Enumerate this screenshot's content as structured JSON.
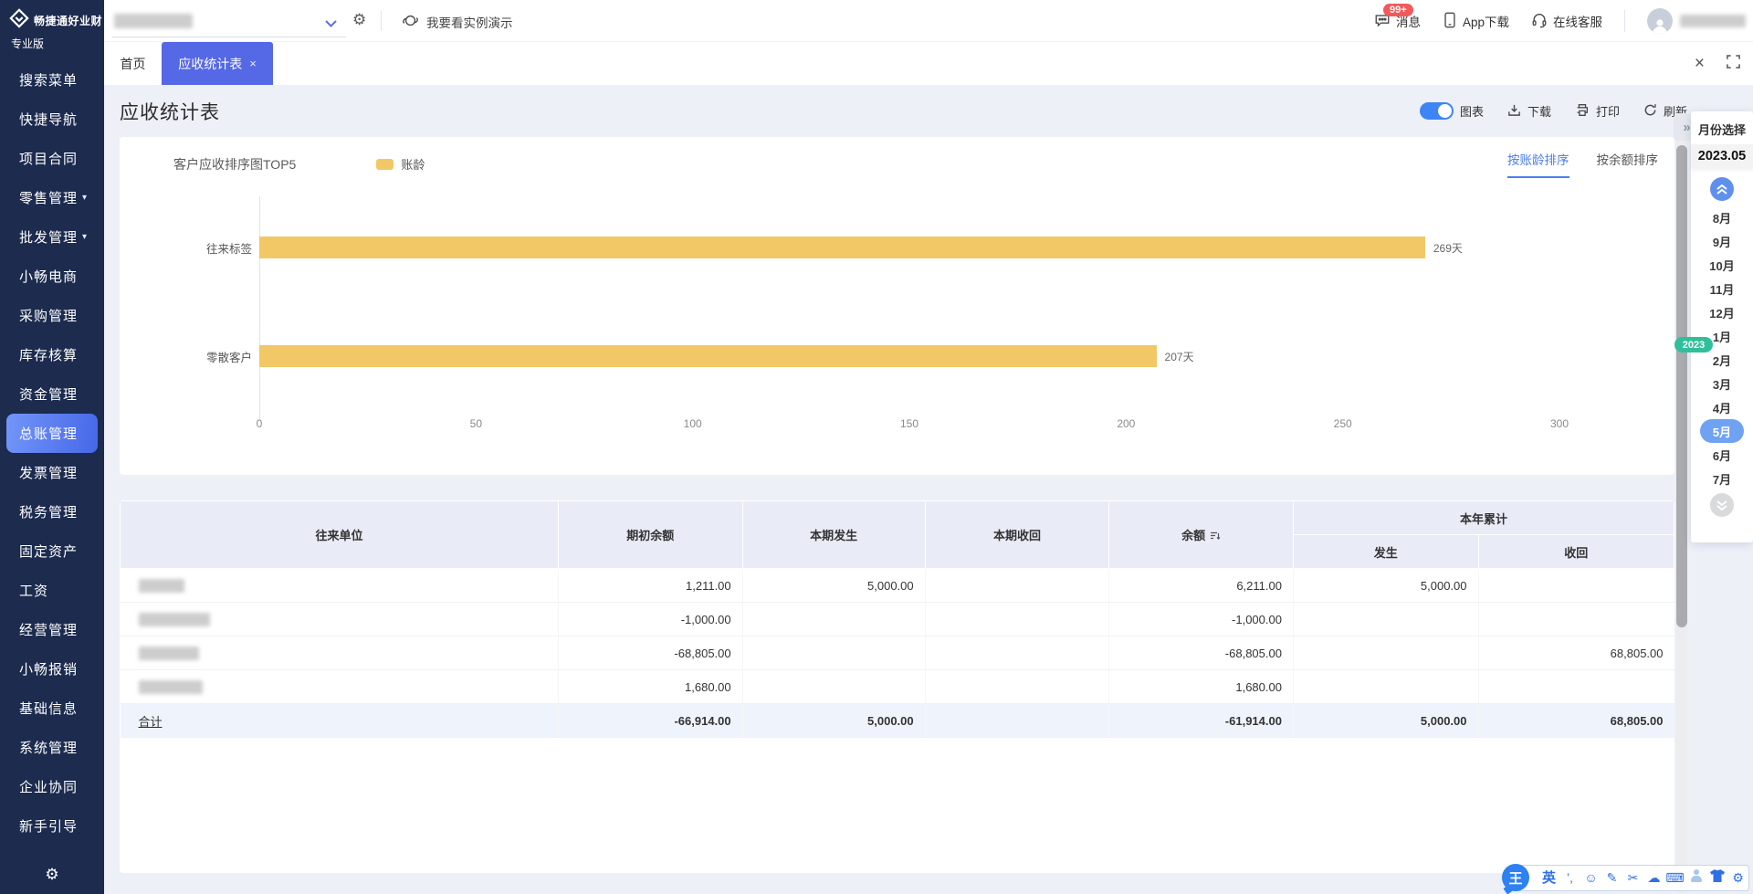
{
  "sidebar": {
    "brand": "畅捷通好业财",
    "edition": "专业版",
    "active_index": 9,
    "items": [
      {
        "label": "搜索菜单"
      },
      {
        "label": "快捷导航"
      },
      {
        "label": "项目合同"
      },
      {
        "label": "零售管理",
        "expandable": true
      },
      {
        "label": "批发管理",
        "expandable": true
      },
      {
        "label": "小畅电商"
      },
      {
        "label": "采购管理"
      },
      {
        "label": "库存核算"
      },
      {
        "label": "资金管理"
      },
      {
        "label": "总账管理"
      },
      {
        "label": "发票管理"
      },
      {
        "label": "税务管理"
      },
      {
        "label": "固定资产"
      },
      {
        "label": "工资"
      },
      {
        "label": "经营管理"
      },
      {
        "label": "小畅报销"
      },
      {
        "label": "基础信息"
      },
      {
        "label": "系统管理"
      },
      {
        "label": "企业协同"
      },
      {
        "label": "新手引导"
      }
    ]
  },
  "topbar": {
    "demo_label": "我要看实例演示",
    "messages_label": "消息",
    "messages_badge": "99+",
    "app_download_label": "App下载",
    "online_service_label": "在线客服"
  },
  "tabs": {
    "active_index": 1,
    "items": [
      {
        "label": "首页",
        "closable": false
      },
      {
        "label": "应收统计表",
        "closable": true
      }
    ]
  },
  "page": {
    "title": "应收统计表",
    "controls": {
      "chart_toggle": "图表",
      "download": "下载",
      "print": "打印",
      "refresh": "刷新"
    },
    "chart_toggle_on": true
  },
  "chart_panel": {
    "active_sort_index": 0,
    "sort_tabs": [
      "按账龄排序",
      "按余额排序"
    ]
  },
  "chart_data": {
    "type": "bar",
    "orientation": "horizontal",
    "title": "客户应收排序图TOP5",
    "legend": [
      {
        "label": "账龄",
        "color": "#F2C766"
      }
    ],
    "legend_position": "top",
    "categories": [
      "往来标签",
      "零散客户"
    ],
    "values": [
      269,
      207
    ],
    "value_labels": [
      "269天",
      "207天"
    ],
    "value_unit": "天",
    "xlim": [
      0,
      300
    ],
    "x_ticks": [
      0,
      50,
      100,
      150,
      200,
      250,
      300
    ],
    "bar_color": "#F2C766",
    "grid": false
  },
  "table": {
    "columns": [
      "往来单位",
      "期初余额",
      "本期发生",
      "本期收回",
      "余额"
    ],
    "year_group": {
      "label": "本年累计",
      "sub_columns": [
        "发生",
        "收回"
      ]
    },
    "rows": [
      {
        "name_redacted": true,
        "cells": [
          "1,211.00",
          "5,000.00",
          "",
          "6,211.00",
          "5,000.00",
          ""
        ]
      },
      {
        "name_redacted": true,
        "cells": [
          "-1,000.00",
          "",
          "",
          "-1,000.00",
          "",
          ""
        ]
      },
      {
        "name_redacted": true,
        "cells": [
          "-68,805.00",
          "",
          "",
          "-68,805.00",
          "",
          "68,805.00"
        ]
      },
      {
        "name_redacted": true,
        "cells": [
          "1,680.00",
          "",
          "",
          "1,680.00",
          "",
          ""
        ]
      }
    ],
    "total_row": {
      "label": "合计",
      "cells": [
        "-66,914.00",
        "5,000.00",
        "",
        "-61,914.00",
        "5,000.00",
        "68,805.00"
      ]
    }
  },
  "month_panel": {
    "title": "月份选择",
    "current_period": "2023.05",
    "year_badge": "2023",
    "collapse_glyph": "»",
    "active_index": 9,
    "months": [
      "8月",
      "9月",
      "10月",
      "11月",
      "12月",
      "1月",
      "2月",
      "3月",
      "4月",
      "5月",
      "6月",
      "7月"
    ]
  },
  "ime": {
    "lang_label": "英",
    "punct_label": "’,"
  },
  "colors": {
    "sidebar_bg": "#1C2B4E",
    "active_tab_bg": "#5568E6",
    "accent_blue": "#4A7DF2",
    "bar_yellow": "#F2C766",
    "table_header_bg": "#E9EBF7",
    "total_row_bg": "#EFF4FC",
    "month_active": "#6FA2F3",
    "year_badge_green": "#30BF9B",
    "badge_red": "#F25A5A",
    "content_bg": "#EDF0F6"
  }
}
